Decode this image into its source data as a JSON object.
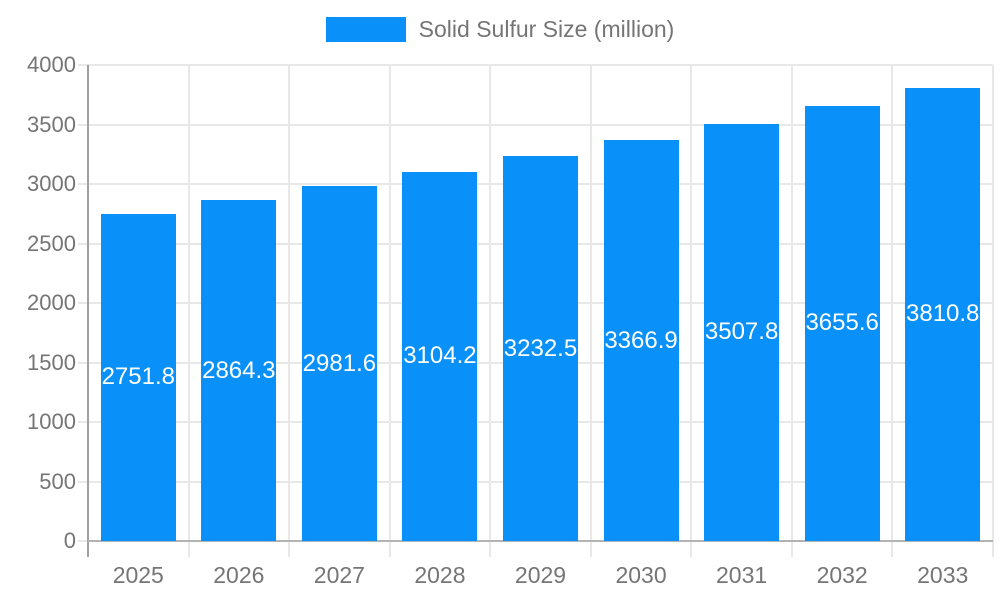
{
  "legend": {
    "label": "Solid Sulfur Size (million)"
  },
  "chart_data": {
    "type": "bar",
    "title": "",
    "categories": [
      "2025",
      "2026",
      "2027",
      "2028",
      "2029",
      "2030",
      "2031",
      "2032",
      "2033"
    ],
    "series": [
      {
        "name": "Solid Sulfur Size (million)",
        "values": [
          2751.8,
          2864.3,
          2981.6,
          3104.2,
          3232.5,
          3366.9,
          3507.8,
          3655.6,
          3810.8
        ]
      }
    ],
    "value_labels": [
      "2751.8",
      "2864.3",
      "2981.6",
      "3104.2",
      "3232.5",
      "3366.9",
      "3507.8",
      "3655.6",
      "3810.8"
    ],
    "xlabel": "",
    "ylabel": "",
    "ylim": [
      0,
      4000
    ],
    "ytick_step": 500,
    "yticks": [
      0,
      500,
      1000,
      1500,
      2000,
      2500,
      3000,
      3500,
      4000
    ],
    "grid": true,
    "legend_position": "top-center",
    "colors": {
      "bar": "#0990f9",
      "bar_value_text": "#ffffff",
      "axis_text": "#757575",
      "legend_text": "#757575",
      "gridline": "#e8e8e8",
      "y_axis_line": "#a0a0a0",
      "x_axis_line": "#b3b3b3"
    }
  }
}
